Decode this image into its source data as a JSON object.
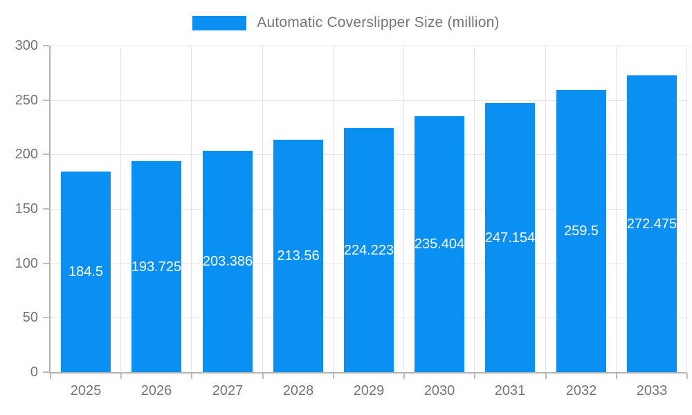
{
  "legend": {
    "label": "Automatic Coverslipper Size (million)"
  },
  "chart_data": {
    "type": "bar",
    "title": "Automatic Coverslipper Size (million)",
    "categories": [
      "2025",
      "2026",
      "2027",
      "2028",
      "2029",
      "2030",
      "2031",
      "2032",
      "2033"
    ],
    "values": [
      184.5,
      193.725,
      203.386,
      213.56,
      224.223,
      235.404,
      247.154,
      259.5,
      272.475
    ],
    "value_labels": [
      "184.5",
      "193.725",
      "203.386",
      "213.56",
      "224.223",
      "235.404",
      "247.154",
      "259.5",
      "272.475"
    ],
    "xlabel": "",
    "ylabel": "",
    "ylim": [
      0,
      300
    ],
    "yticks": [
      0,
      50,
      100,
      150,
      200,
      250,
      300
    ],
    "grid": true,
    "legend_position": "top",
    "colors": {
      "bar": "#0a90f2",
      "axis_text": "#757575",
      "grid": "#e6e6e6",
      "axis_line": "#b3b3b3",
      "datalabel": "#ffffff"
    }
  }
}
